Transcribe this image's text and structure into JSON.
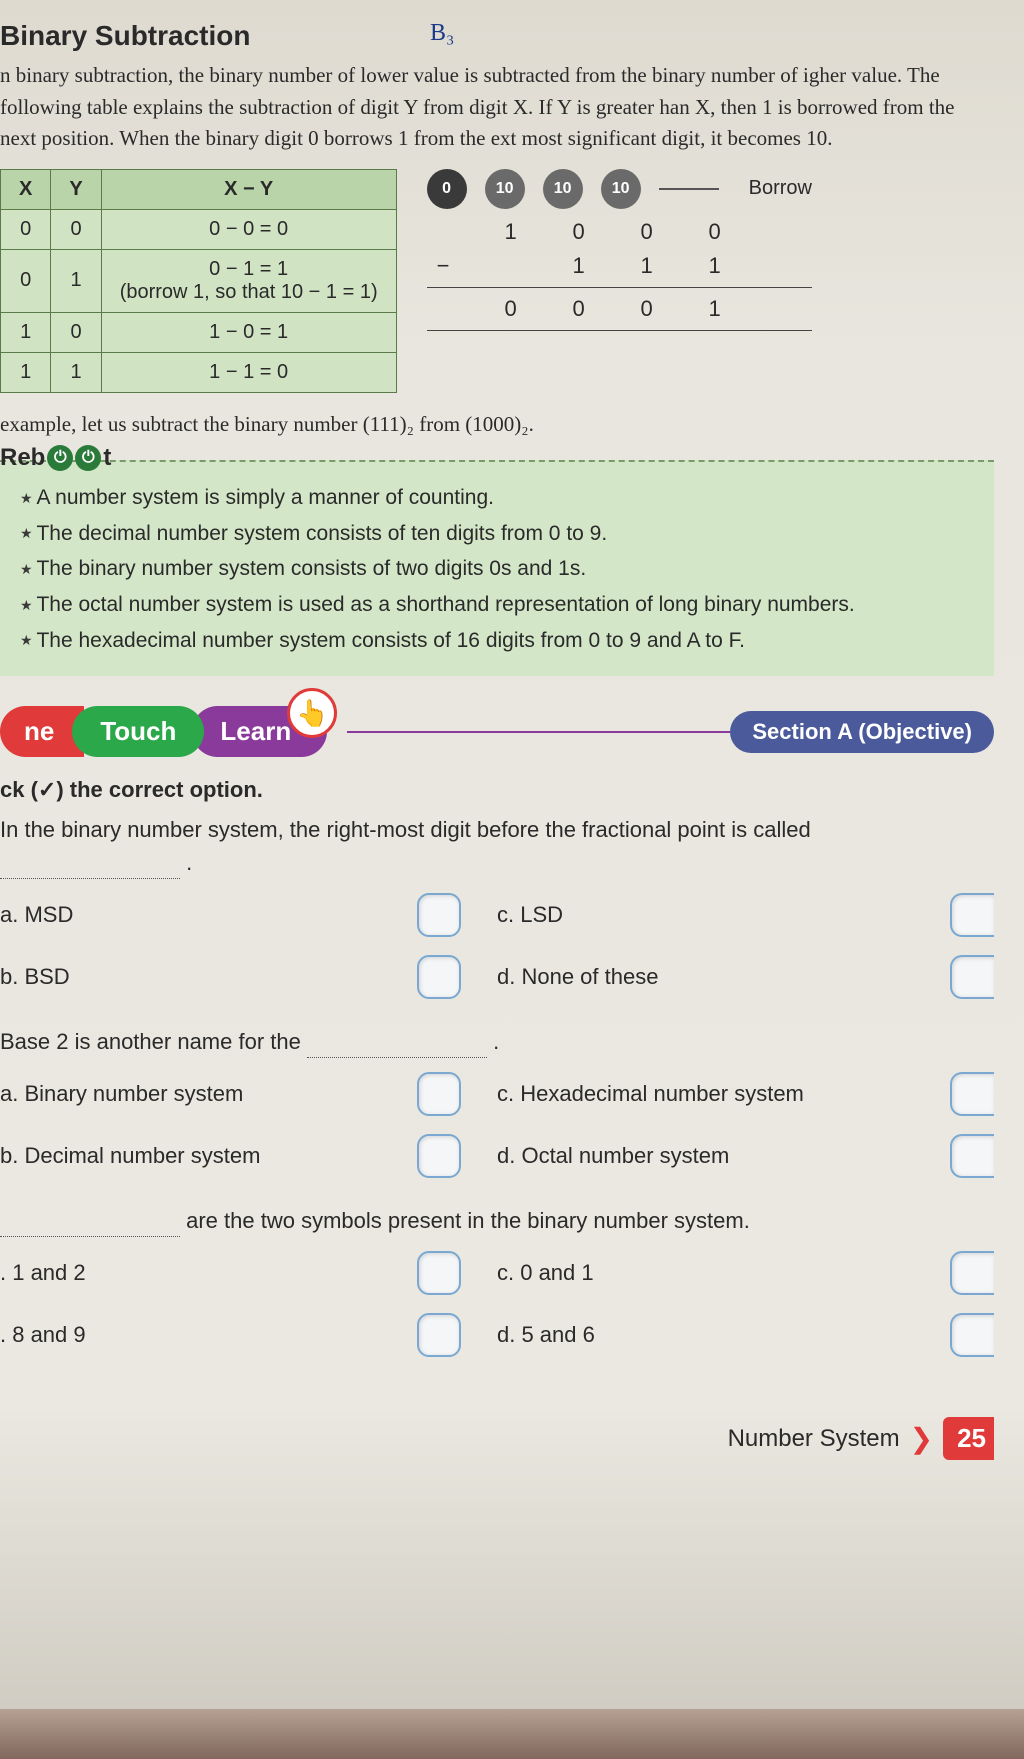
{
  "heading": "Binary Subtraction",
  "handwritten": "B₃",
  "intro": "n binary subtraction, the binary number of lower value is subtracted from the binary number of igher value. The following table explains the subtraction of digit Y from digit X. If Y is greater han X, then 1 is borrowed from the next position. When the binary digit 0 borrows 1 from the ext most significant digit, it becomes 10.",
  "table": {
    "headers": [
      "X",
      "Y",
      "X − Y"
    ],
    "rows": [
      [
        "0",
        "0",
        "0 − 0 = 0"
      ],
      [
        "0",
        "1",
        "0 − 1 = 1\n(borrow 1, so that 10 − 1 = 1)"
      ],
      [
        "1",
        "0",
        "1 − 0 = 1"
      ],
      [
        "1",
        "1",
        "1 − 1 = 0"
      ]
    ]
  },
  "borrow": {
    "label": "Borrow",
    "circles": [
      "0",
      "10",
      "10",
      "10"
    ],
    "minuend": [
      "1",
      "0",
      "0",
      "0"
    ],
    "subtrahend": [
      "",
      "1",
      "1",
      "1"
    ],
    "result": [
      "0",
      "0",
      "0",
      "1"
    ]
  },
  "example_line": "example, let us subtract the binary number (111)₂ from (1000)₂.",
  "reboot": {
    "label_pre": "Reb",
    "label_post": "t",
    "points": [
      "A number system is simply a manner of counting.",
      "The decimal number system consists of ten digits from 0 to 9.",
      "The binary number system consists of two digits 0s and 1s.",
      "The octal number system is used as a shorthand representation of long binary numbers.",
      "The hexadecimal number system consists of 16 digits from 0 to 9 and A to F."
    ]
  },
  "touchlearn": {
    "ne": "ne",
    "touch": "Touch",
    "learn": "Learn"
  },
  "section_a": "Section A (Objective)",
  "tick_instr": "ck (✓) the correct option.",
  "q1": {
    "text": "In the binary number system, the right-most digit before the fractional point is called",
    "a": "a. MSD",
    "b": "b. BSD",
    "c": "c. LSD",
    "d": "d. None of these"
  },
  "q2": {
    "text_pre": "Base 2 is another name for the ",
    "a": "a. Binary number system",
    "b": "b. Decimal number system",
    "c": "c. Hexadecimal number system",
    "d": "d. Octal number system"
  },
  "q3": {
    "text_post": " are the two symbols present in the binary number system.",
    "a": ". 1 and 2",
    "b": ". 8 and 9",
    "c": "c. 0 and 1",
    "d": "d. 5 and 6"
  },
  "footer": {
    "label": "Number System",
    "page": "25"
  }
}
